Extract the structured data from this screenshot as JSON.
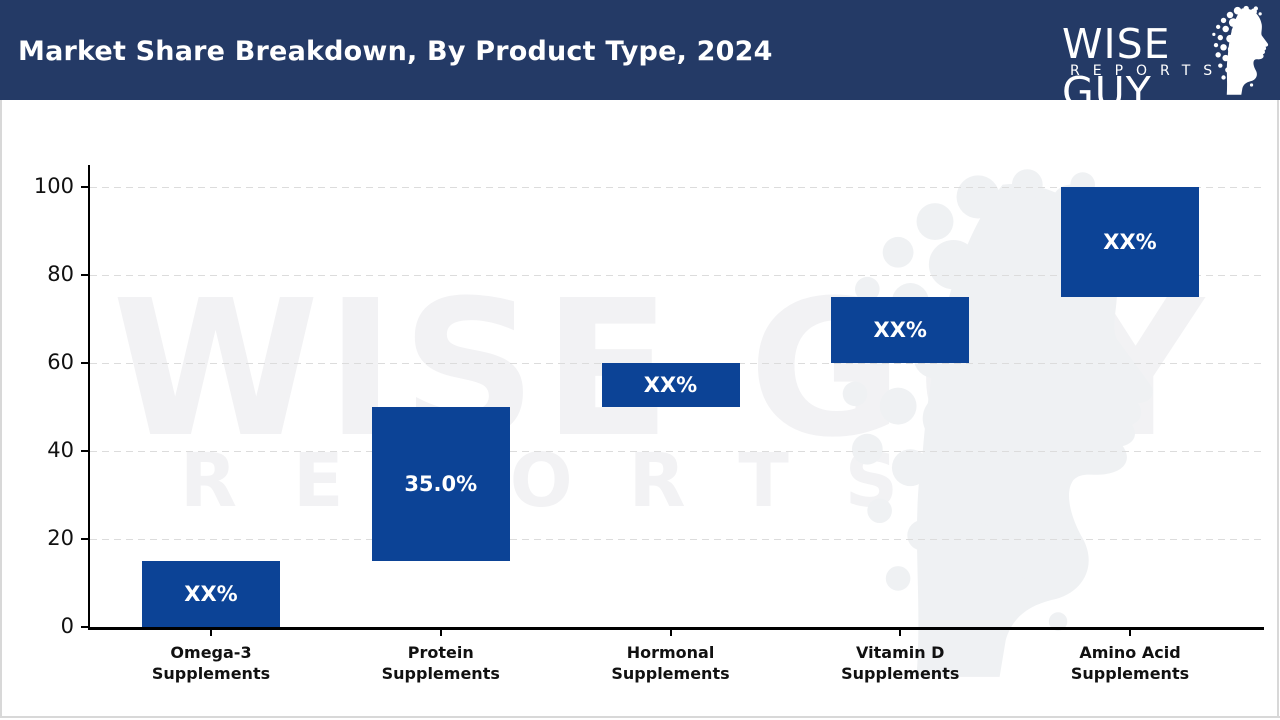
{
  "header": {
    "title": "Market Share Breakdown, By Product Type, 2024",
    "logo": {
      "name": "WISE GUY",
      "tagline": "REPORTS"
    }
  },
  "watermark": {
    "name": "WISE GUY",
    "tagline": "REPORTS"
  },
  "chart_data": {
    "type": "bar",
    "subtype": "waterfall",
    "title": "Market Share Breakdown, By Product Type, 2024",
    "categories": [
      "Omega-3 Supplements",
      "Protein Supplements",
      "Hormonal Supplements",
      "Vitamin D Supplements",
      "Amino Acid Supplements"
    ],
    "category_lines": [
      [
        "Omega-3",
        "Supplements"
      ],
      [
        "Protein",
        "Supplements"
      ],
      [
        "Hormonal",
        "Supplements"
      ],
      [
        "Vitamin D",
        "Supplements"
      ],
      [
        "Amino Acid",
        "Supplements"
      ]
    ],
    "segment_start": [
      0,
      15,
      50,
      60,
      75
    ],
    "segment_end": [
      15,
      50,
      60,
      75,
      100
    ],
    "values": [
      15,
      35,
      10,
      15,
      25
    ],
    "bar_labels": [
      "XX%",
      "35.0%",
      "XX%",
      "XX%",
      "XX%"
    ],
    "xlabel": "",
    "ylabel": "",
    "yticks": [
      0,
      20,
      40,
      60,
      80,
      100
    ],
    "ylim": [
      0,
      105
    ],
    "grid": {
      "horizontal": true,
      "style": "dashed",
      "color": "#dcdcdc"
    },
    "legend": "none",
    "bar_color": "#0C4396",
    "bar_label_color": "#ffffff",
    "axis_color": "#000000"
  },
  "colors": {
    "header_bg": "#243A66",
    "page_bg": "#ffffff",
    "watermark": "#f0f1f4",
    "frame_line": "#d8d8d8"
  }
}
